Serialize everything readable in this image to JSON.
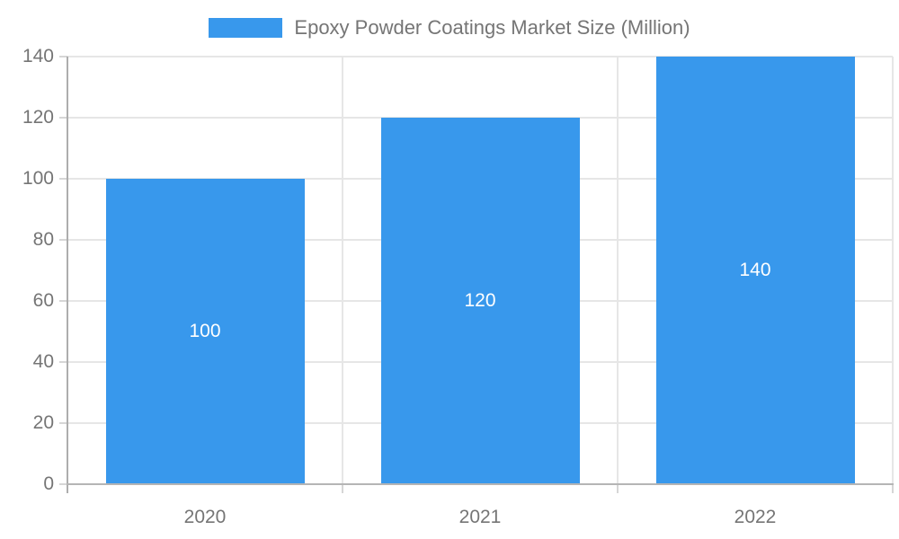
{
  "legend": {
    "label": "Epoxy Powder Coatings Market Size (Million)"
  },
  "chart_data": {
    "type": "bar",
    "title": "Epoxy Powder Coatings Market Size (Million)",
    "categories": [
      "2020",
      "2021",
      "2022"
    ],
    "values": [
      100,
      120,
      140
    ],
    "bar_labels": [
      "100",
      "120",
      "140"
    ],
    "xlabel": "",
    "ylabel": "",
    "ylim": [
      0,
      140
    ],
    "y_ticks": [
      0,
      20,
      40,
      60,
      80,
      100,
      120,
      140
    ],
    "grid": true,
    "legend_position": "top-center",
    "colors": {
      "bar": "#3898ec",
      "bar_label_text": "#ffffff",
      "axis_text": "#757575",
      "legend_text": "#757575",
      "gridline": "#e6e6e6",
      "y_axis_line": "#adadad",
      "x_axis_line": "#b5b5b5",
      "background": "#ffffff"
    }
  }
}
